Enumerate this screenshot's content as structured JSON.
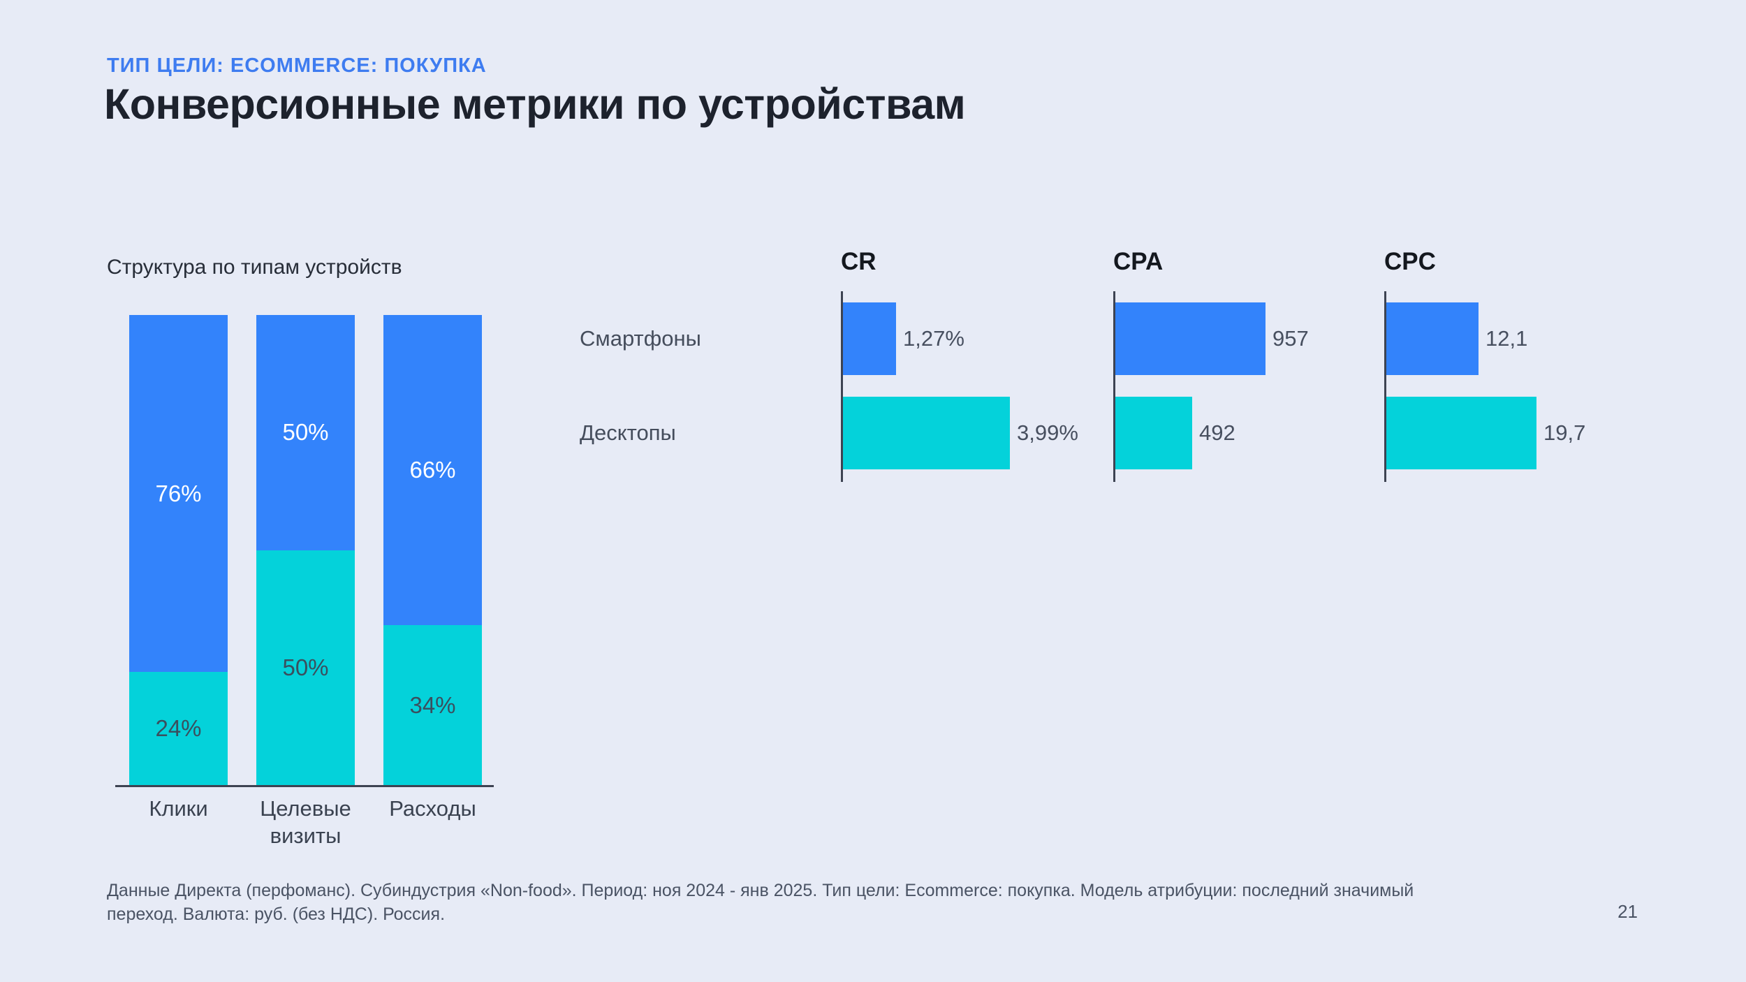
{
  "page": {
    "kicker": "ТИП ЦЕЛИ: ECOMMERCE: ПОКУПКА",
    "title": "Конверсионные метрики по устройствам",
    "page_number": "21",
    "footer_lines": [
      "Данные Директа (перфоманс). Субиндустрия «Non-food». Период: ноя 2024 - янв 2025. Тип цели: Ecommerce: покупка. Модель атрибуции: последний значимый",
      "переход. Валюта: руб. (без НДС). Россия."
    ]
  },
  "colors": {
    "background": "#e7ebf6",
    "smartphones": "#3383fb",
    "desktops": "#04d2da",
    "accent_text": "#3e7cf0",
    "axis": "#3d4352",
    "label_on_blue": "#ffffff",
    "label_on_cyan": "#3a4f5e"
  },
  "device_rows": [
    "Смартфоны",
    "Десктопы"
  ],
  "chart_data": [
    {
      "id": "device-structure",
      "type": "bar",
      "subtype": "stacked-percent-column",
      "title": "Структура по типам устройств",
      "categories": [
        "Клики",
        "Целевые визиты",
        "Расходы"
      ],
      "series": [
        {
          "name": "Смартфоны",
          "color": "#3383fb",
          "values": [
            76,
            50,
            66
          ],
          "labels": [
            "76%",
            "50%",
            "66%"
          ]
        },
        {
          "name": "Десктопы",
          "color": "#04d2da",
          "values": [
            24,
            50,
            34
          ],
          "labels": [
            "24%",
            "50%",
            "34%"
          ]
        }
      ],
      "unit": "%",
      "ylim": [
        0,
        100
      ],
      "grid": false,
      "legend": "none"
    },
    {
      "id": "cr",
      "type": "bar",
      "subtype": "horizontal",
      "title": "CR",
      "categories": [
        "Смартфоны",
        "Десктопы"
      ],
      "values": [
        1.27,
        3.99
      ],
      "labels": [
        "1,27%",
        "3,99%"
      ],
      "colors": [
        "#3383fb",
        "#04d2da"
      ],
      "xlim": [
        0,
        4.0
      ],
      "grid": false
    },
    {
      "id": "cpa",
      "type": "bar",
      "subtype": "horizontal",
      "title": "CPA",
      "categories": [
        "Смартфоны",
        "Десктопы"
      ],
      "values": [
        957,
        492
      ],
      "labels": [
        "957",
        "492"
      ],
      "colors": [
        "#3383fb",
        "#04d2da"
      ],
      "xlim": [
        0,
        1070
      ],
      "grid": false
    },
    {
      "id": "cpc",
      "type": "bar",
      "subtype": "horizontal",
      "title": "CPC",
      "categories": [
        "Смартфоны",
        "Десктопы"
      ],
      "values": [
        12.1,
        19.7
      ],
      "labels": [
        "12,1",
        "19,7"
      ],
      "colors": [
        "#3383fb",
        "#04d2da"
      ],
      "xlim": [
        0,
        22
      ],
      "grid": false
    }
  ]
}
